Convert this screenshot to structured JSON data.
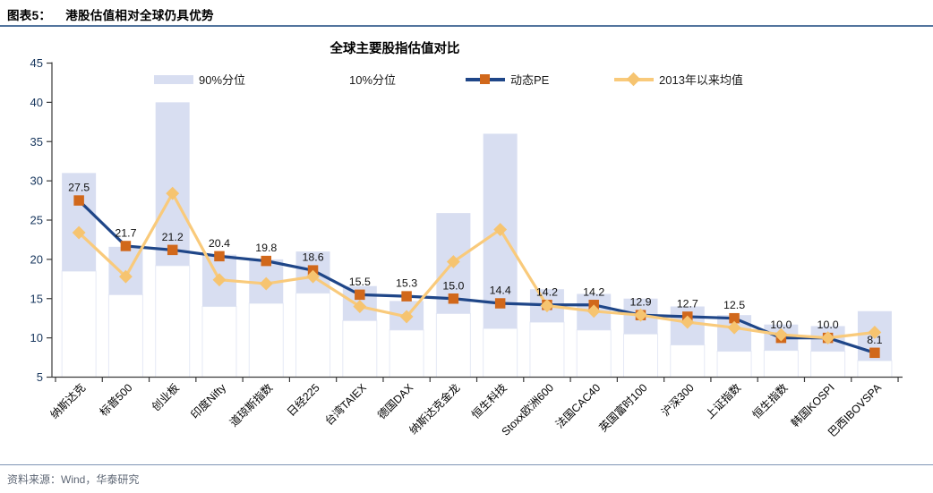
{
  "header": {
    "figure_label": "图表5：",
    "figure_title": "港股估值相对全球仍具优势"
  },
  "footer": {
    "source": "资料来源：Wind，华泰研究"
  },
  "chart_data": {
    "type": "bar",
    "subtype": "floating-range-bars-with-lines",
    "title": "全球主要股指估值对比",
    "legend_position": "top",
    "grid": false,
    "ylim": [
      5,
      45
    ],
    "yticks": [
      5,
      10,
      15,
      20,
      25,
      30,
      35,
      40,
      45
    ],
    "categories": [
      "纳斯达克",
      "标普500",
      "创业板",
      "印度Nifty",
      "道琼斯指数",
      "日经225",
      "台湾TAIEX",
      "德国DAX",
      "纳斯达克金龙",
      "恒生科技",
      "Stoxx欧洲600",
      "法国CAC40",
      "英国富时100",
      "沪深300",
      "上证指数",
      "恒生指数",
      "韩国KOSPI",
      "巴西IBOVSPA"
    ],
    "legend": [
      {
        "label": "90%分位",
        "swatch": "bar"
      },
      {
        "label": "10%分位",
        "swatch": "bar-hidden"
      },
      {
        "label": "动态PE",
        "swatch": "line-square"
      },
      {
        "label": "2013年以来均值",
        "swatch": "line-diamond"
      }
    ],
    "series": [
      {
        "name": "动态PE",
        "type": "line",
        "marker": "square",
        "values": [
          27.5,
          21.7,
          21.2,
          20.4,
          19.8,
          18.6,
          15.5,
          15.3,
          15.0,
          14.4,
          14.2,
          14.2,
          12.9,
          12.7,
          12.5,
          10.0,
          10.0,
          8.1
        ],
        "data_labels": true
      },
      {
        "name": "2013年以来均值",
        "type": "line",
        "marker": "diamond",
        "values": [
          23.4,
          17.8,
          28.4,
          17.4,
          16.9,
          17.8,
          14.0,
          12.7,
          19.7,
          23.8,
          14.1,
          13.4,
          12.9,
          12.0,
          11.3,
          10.4,
          10.0,
          10.7
        ],
        "data_labels": false
      },
      {
        "name": "90%分位",
        "type": "bar-range-top",
        "values": [
          31.0,
          21.6,
          40.0,
          20.6,
          20.0,
          21.0,
          16.6,
          14.7,
          25.9,
          36.0,
          16.2,
          15.6,
          15.0,
          14.0,
          12.9,
          11.7,
          11.5,
          13.4
        ]
      },
      {
        "name": "10%分位",
        "type": "bar-range-bottom",
        "values": [
          18.5,
          15.5,
          19.2,
          14.0,
          14.4,
          15.7,
          12.2,
          11.0,
          13.1,
          11.2,
          12.0,
          11.0,
          10.5,
          9.1,
          8.3,
          8.4,
          8.3,
          7.1
        ]
      }
    ],
    "colors": {
      "range_bar_fill": "#D8DEF1",
      "lower_bar_fill": "#FFFFFF",
      "lower_bar_stroke": "#E5E9F5",
      "pe_line": "#1F4688",
      "pe_marker": "#D1681B",
      "mean_line": "#F9CA7B",
      "mean_marker": "#F6C470",
      "axis": "#3A3A3A",
      "ytick_label": "#17365D",
      "xtick_label": "#000000",
      "data_label": "#111111"
    }
  }
}
